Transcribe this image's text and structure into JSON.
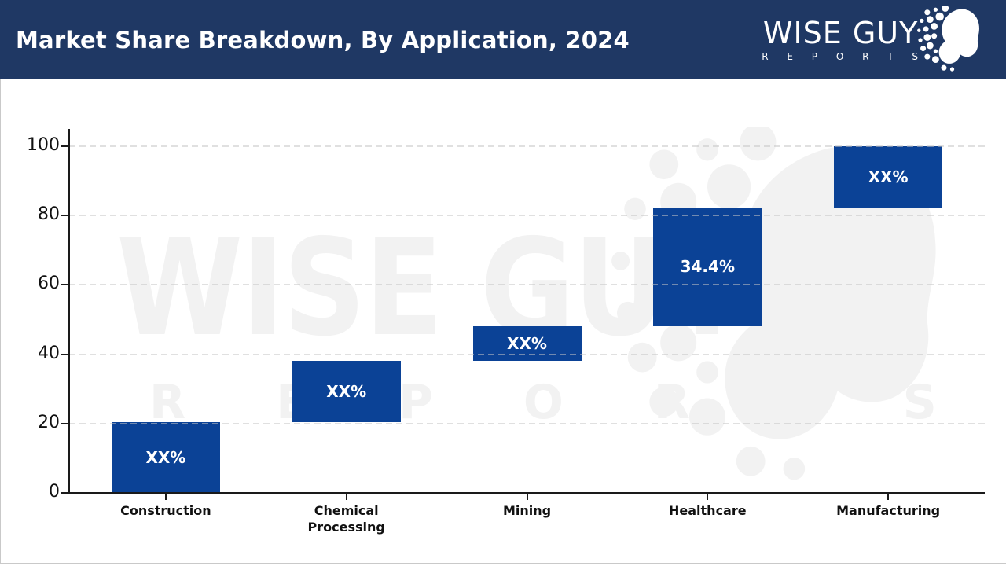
{
  "header": {
    "title": "Market Share Breakdown, By Application, 2024",
    "logo": {
      "line1": "WISE GUY",
      "line2": "R E P O R T S"
    }
  },
  "watermark": {
    "line1": "WISE GUY",
    "line2": "R E P O R T S"
  },
  "colors": {
    "header_bg": "#1f3864",
    "bar": "#0b4296",
    "bar_label": "#ffffff",
    "axis": "#1a1a1a",
    "watermark": "#f2f2f2",
    "grid": "#e3e3e3"
  },
  "chart_data": {
    "type": "bar",
    "subtype": "floating-waterfall",
    "title": "Market Share Breakdown, By Application, 2024",
    "xlabel": "",
    "ylabel": "",
    "ylim": [
      0,
      100
    ],
    "yticks": [
      0,
      20,
      40,
      60,
      80,
      100
    ],
    "grid": "horizontal-dashed",
    "legend": "none",
    "categories": [
      "Construction",
      "Chemical\nProcessing",
      "Mining",
      "Healthcare",
      "Manufacturing"
    ],
    "segments": [
      {
        "category": "Construction",
        "label": "XX%",
        "start": 0,
        "end": 20.5
      },
      {
        "category": "Chemical\nProcessing",
        "label": "XX%",
        "start": 20.5,
        "end": 38
      },
      {
        "category": "Mining",
        "label": "XX%",
        "start": 38,
        "end": 48
      },
      {
        "category": "Healthcare",
        "label": "34.4%",
        "start": 48,
        "end": 82.4
      },
      {
        "category": "Manufacturing",
        "label": "XX%",
        "start": 82.4,
        "end": 100
      }
    ]
  }
}
